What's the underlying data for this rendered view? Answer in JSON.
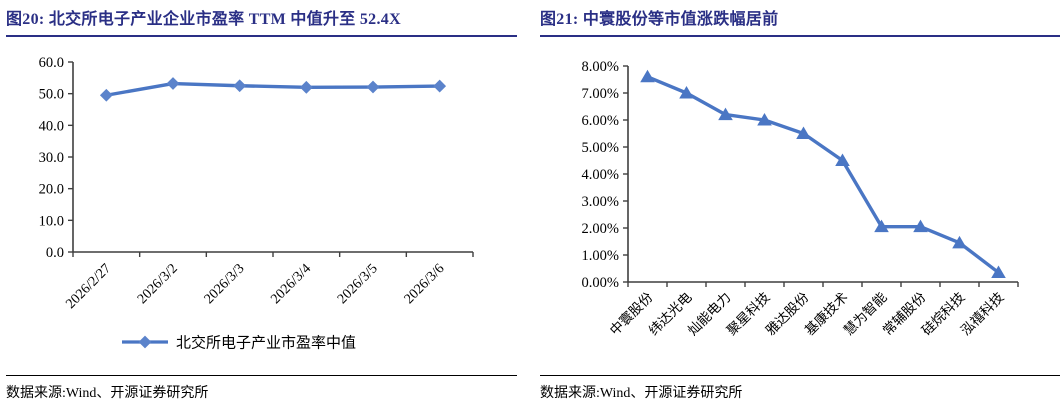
{
  "colors": {
    "title_navy": "#2a2f85",
    "line_blue": "#4a76c4",
    "marker_blue": "#5b83cb",
    "axis_gray": "#3f3f3f",
    "text_black": "#000000"
  },
  "panels": [
    {
      "title": "图20: 北交所电子产业企业市盈率 TTM 中值升至 52.4X",
      "source": "数据来源:Wind、开源证券研究所"
    },
    {
      "title": "图21: 中寰股份等市值涨跌幅居前",
      "source": "数据来源:Wind、开源证券研究所"
    }
  ],
  "chart_data": [
    {
      "type": "line",
      "title": "图20: 北交所电子产业企业市盈率 TTM 中值升至 52.4X",
      "categories": [
        "2026/2/27",
        "2026/3/2",
        "2026/3/3",
        "2026/3/4",
        "2026/3/5",
        "2026/3/6"
      ],
      "series": [
        {
          "name": "北交所电子产业市盈率中值",
          "values": [
            49.5,
            53.2,
            52.5,
            52.0,
            52.1,
            52.4
          ]
        }
      ],
      "ylim": [
        0,
        60
      ],
      "ytick_step": 10,
      "ytick_format": "fixed1",
      "marker": "diamond",
      "legend_position": "bottom",
      "grid": false
    },
    {
      "type": "line",
      "title": "图21: 中寰股份等市值涨跌幅居前",
      "categories": [
        "中寰股份",
        "纬达光电",
        "灿能电力",
        "聚星科技",
        "雅达股份",
        "基康技术",
        "慧为智能",
        "常辅股份",
        "硅烷科技",
        "泓禧科技"
      ],
      "series": [
        {
          "name": "",
          "values": [
            7.6,
            7.0,
            6.2,
            6.0,
            5.5,
            4.5,
            2.05,
            2.05,
            1.45,
            0.35
          ]
        }
      ],
      "unit": "percent",
      "ylim": [
        0,
        8
      ],
      "ytick_step": 1,
      "ytick_format": "percent2",
      "marker": "triangle",
      "legend_position": "none",
      "grid": false
    }
  ]
}
